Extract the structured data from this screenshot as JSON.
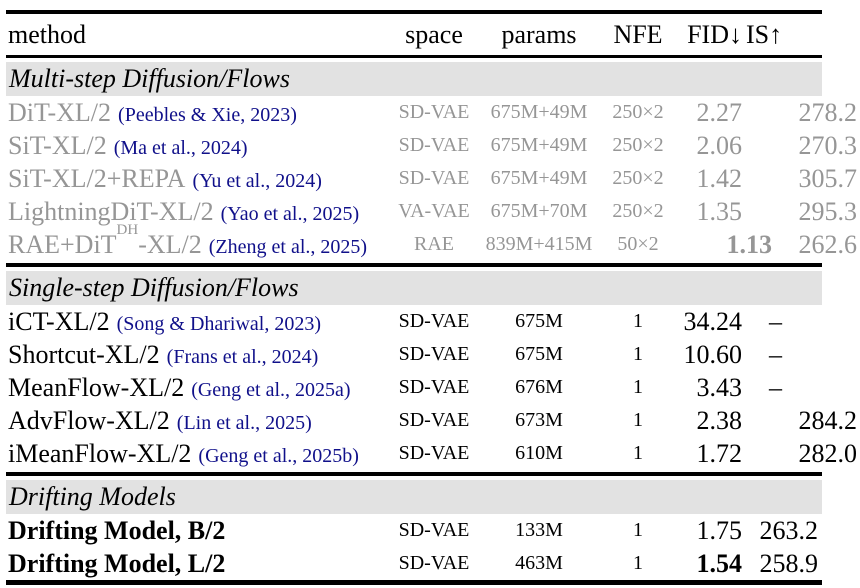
{
  "colors": {
    "section_band_bg": "#e2e2e2",
    "muted_text": "#969696",
    "citation_link": "#10108a",
    "rule": "#000000",
    "body_text": "#000000"
  },
  "header": {
    "method": "method",
    "space": "space",
    "params": "params",
    "nfe": "NFE",
    "fid": "FID↓",
    "is": "IS↑"
  },
  "sections": [
    {
      "name": "multi-step-diffusion-flows",
      "title": "Multi-step Diffusion/Flows",
      "muted": true,
      "rows": [
        {
          "method": "DiT-XL/2",
          "cite": "(Peebles & Xie, 2023)",
          "space": "SD-VAE",
          "params": "675M+49M",
          "nfe": "250×2",
          "fid": "2.27",
          "is": "278.2"
        },
        {
          "method": "SiT-XL/2",
          "cite": "(Ma et al., 2024)",
          "space": "SD-VAE",
          "params": "675M+49M",
          "nfe": "250×2",
          "fid": "2.06",
          "is": "270.3"
        },
        {
          "method": "SiT-XL/2+REPA",
          "cite": "(Yu et al., 2024)",
          "space": "SD-VAE",
          "params": "675M+49M",
          "nfe": "250×2",
          "fid": "1.42",
          "is": "305.7"
        },
        {
          "method": "LightningDiT-XL/2",
          "cite": "(Yao et al., 2025)",
          "space": "VA-VAE",
          "params": "675M+70M",
          "nfe": "250×2",
          "fid": "1.35",
          "is": "295.3"
        },
        {
          "method": "RAE+DiT",
          "method_sup": "DH",
          "method_tail": "-XL/2",
          "cite": "(Zheng et al., 2025)",
          "space": "RAE",
          "params": "839M+415M",
          "nfe": "50×2",
          "fid": "1.13",
          "fid_bold": true,
          "fid_shift": true,
          "is": "262.6"
        }
      ]
    },
    {
      "name": "single-step-diffusion-flows",
      "title": "Single-step Diffusion/Flows",
      "muted": false,
      "rows": [
        {
          "method": "iCT-XL/2",
          "cite": "(Song & Dhariwal, 2023)",
          "space": "SD-VAE",
          "params": "675M",
          "nfe": "1",
          "fid": "34.24",
          "is": "–"
        },
        {
          "method": "Shortcut-XL/2",
          "cite": "(Frans et al., 2024)",
          "space": "SD-VAE",
          "params": "675M",
          "nfe": "1",
          "fid": "10.60",
          "is": "–"
        },
        {
          "method": "MeanFlow-XL/2",
          "cite": "(Geng et al., 2025a)",
          "space": "SD-VAE",
          "params": "676M",
          "nfe": "1",
          "fid": "3.43",
          "is": "–"
        },
        {
          "method": "AdvFlow-XL/2",
          "cite": "(Lin et al., 2025)",
          "space": "SD-VAE",
          "params": "673M",
          "nfe": "1",
          "fid": "2.38",
          "is": "284.2"
        },
        {
          "method": "iMeanFlow-XL/2",
          "cite": "(Geng et al., 2025b)",
          "space": "SD-VAE",
          "params": "610M",
          "nfe": "1",
          "fid": "1.72",
          "is": "282.0"
        }
      ]
    },
    {
      "name": "drifting-models",
      "title": "Drifting Models",
      "muted": false,
      "method_bold": true,
      "rows": [
        {
          "method": "Drifting Model, B/2",
          "space": "SD-VAE",
          "params": "133M",
          "nfe": "1",
          "fid": "1.75",
          "is": "263.2"
        },
        {
          "method": "Drifting Model, L/2",
          "space": "SD-VAE",
          "params": "463M",
          "nfe": "1",
          "fid": "1.54",
          "fid_bold": true,
          "is": "258.9"
        }
      ]
    }
  ]
}
